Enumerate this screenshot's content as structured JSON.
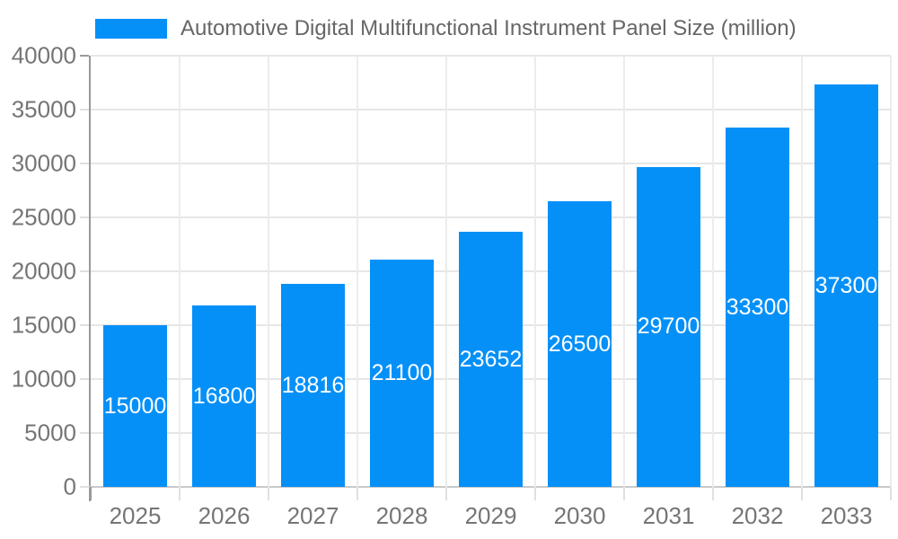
{
  "chart_data": {
    "type": "bar",
    "title": "Automotive Digital Multifunctional Instrument Panel Size (million)",
    "categories": [
      "2025",
      "2026",
      "2027",
      "2028",
      "2029",
      "2030",
      "2031",
      "2032",
      "2033"
    ],
    "values": [
      15000,
      16800,
      18816,
      21100,
      23652,
      26500,
      29700,
      33300,
      37300
    ],
    "xlabel": "",
    "ylabel": "",
    "ylim": [
      0,
      40000
    ],
    "yticks": [
      0,
      5000,
      10000,
      15000,
      20000,
      25000,
      30000,
      35000,
      40000
    ],
    "grid": true,
    "legend_position": "top",
    "colors": {
      "bar": "#0590f8",
      "value_label": "#ffffff",
      "axis_text": "#757575",
      "legend_text": "#666666",
      "gridline": "#e6e6e6",
      "y_axis_line": "#999999",
      "x_axis_line": "#c9c9c9"
    }
  }
}
